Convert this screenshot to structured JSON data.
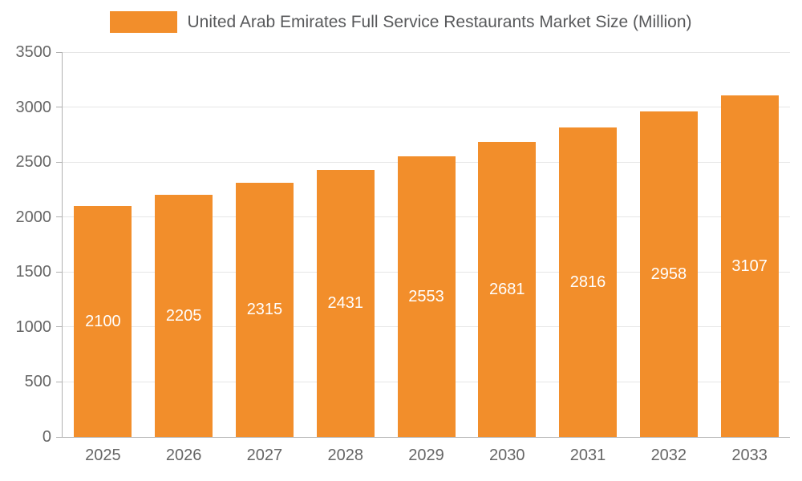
{
  "chart_data": {
    "type": "bar",
    "title": "United Arab Emirates Full Service Restaurants Market Size (Million)",
    "categories": [
      "2025",
      "2026",
      "2027",
      "2028",
      "2029",
      "2030",
      "2031",
      "2032",
      "2033"
    ],
    "values": [
      2100,
      2205,
      2315,
      2431,
      2553,
      2681,
      2816,
      2958,
      3107
    ],
    "xlabel": "",
    "ylabel": "",
    "ylim": [
      0,
      3500
    ],
    "yticks": [
      0,
      500,
      1000,
      1500,
      2000,
      2500,
      3000,
      3500
    ],
    "grid": true,
    "legend_position": "top",
    "bar_color": "#F28E2B",
    "value_label_color": "#FFFFFF",
    "axis_text_color": "#666666",
    "legend_text_color": "#58595B",
    "gridline_color": "#E6E6E6",
    "axis_line_color": "#B0B0B0"
  }
}
